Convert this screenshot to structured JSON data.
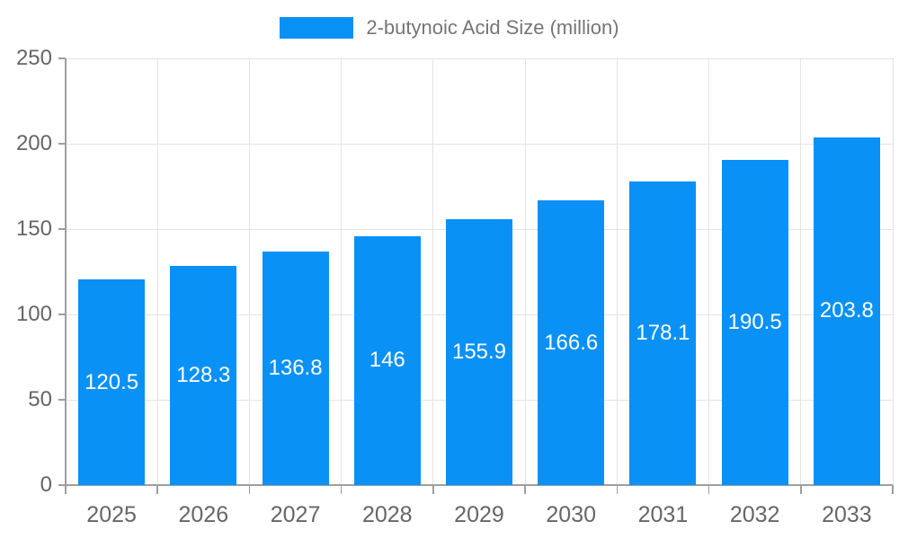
{
  "chart_data": {
    "type": "bar",
    "title": "2-butynoic Acid Size (million)",
    "legend_entries": [
      "2-butynoic Acid Size (million)"
    ],
    "legend_position": "top-center",
    "categories": [
      "2025",
      "2026",
      "2027",
      "2028",
      "2029",
      "2030",
      "2031",
      "2032",
      "2033"
    ],
    "series": [
      {
        "name": "2-butynoic Acid Size (million)",
        "values": [
          120.5,
          128.3,
          136.8,
          146,
          155.9,
          166.6,
          178.1,
          190.5,
          203.8
        ]
      }
    ],
    "value_labels": [
      "120.5",
      "128.3",
      "136.8",
      "146",
      "155.9",
      "166.6",
      "178.1",
      "190.5",
      "203.8"
    ],
    "xlabel": "",
    "ylabel": "",
    "ylim": [
      0,
      250
    ],
    "y_ticks": [
      0,
      50,
      100,
      150,
      200,
      250
    ],
    "grid": true,
    "colors": {
      "bar": "#0a91f5",
      "value_label": "#ffffff",
      "axis_text": "#666666",
      "legend_text": "#757575",
      "gridline": "#e3e3e3",
      "axis_line": "#9e9e9e",
      "background": "#ffffff"
    }
  }
}
